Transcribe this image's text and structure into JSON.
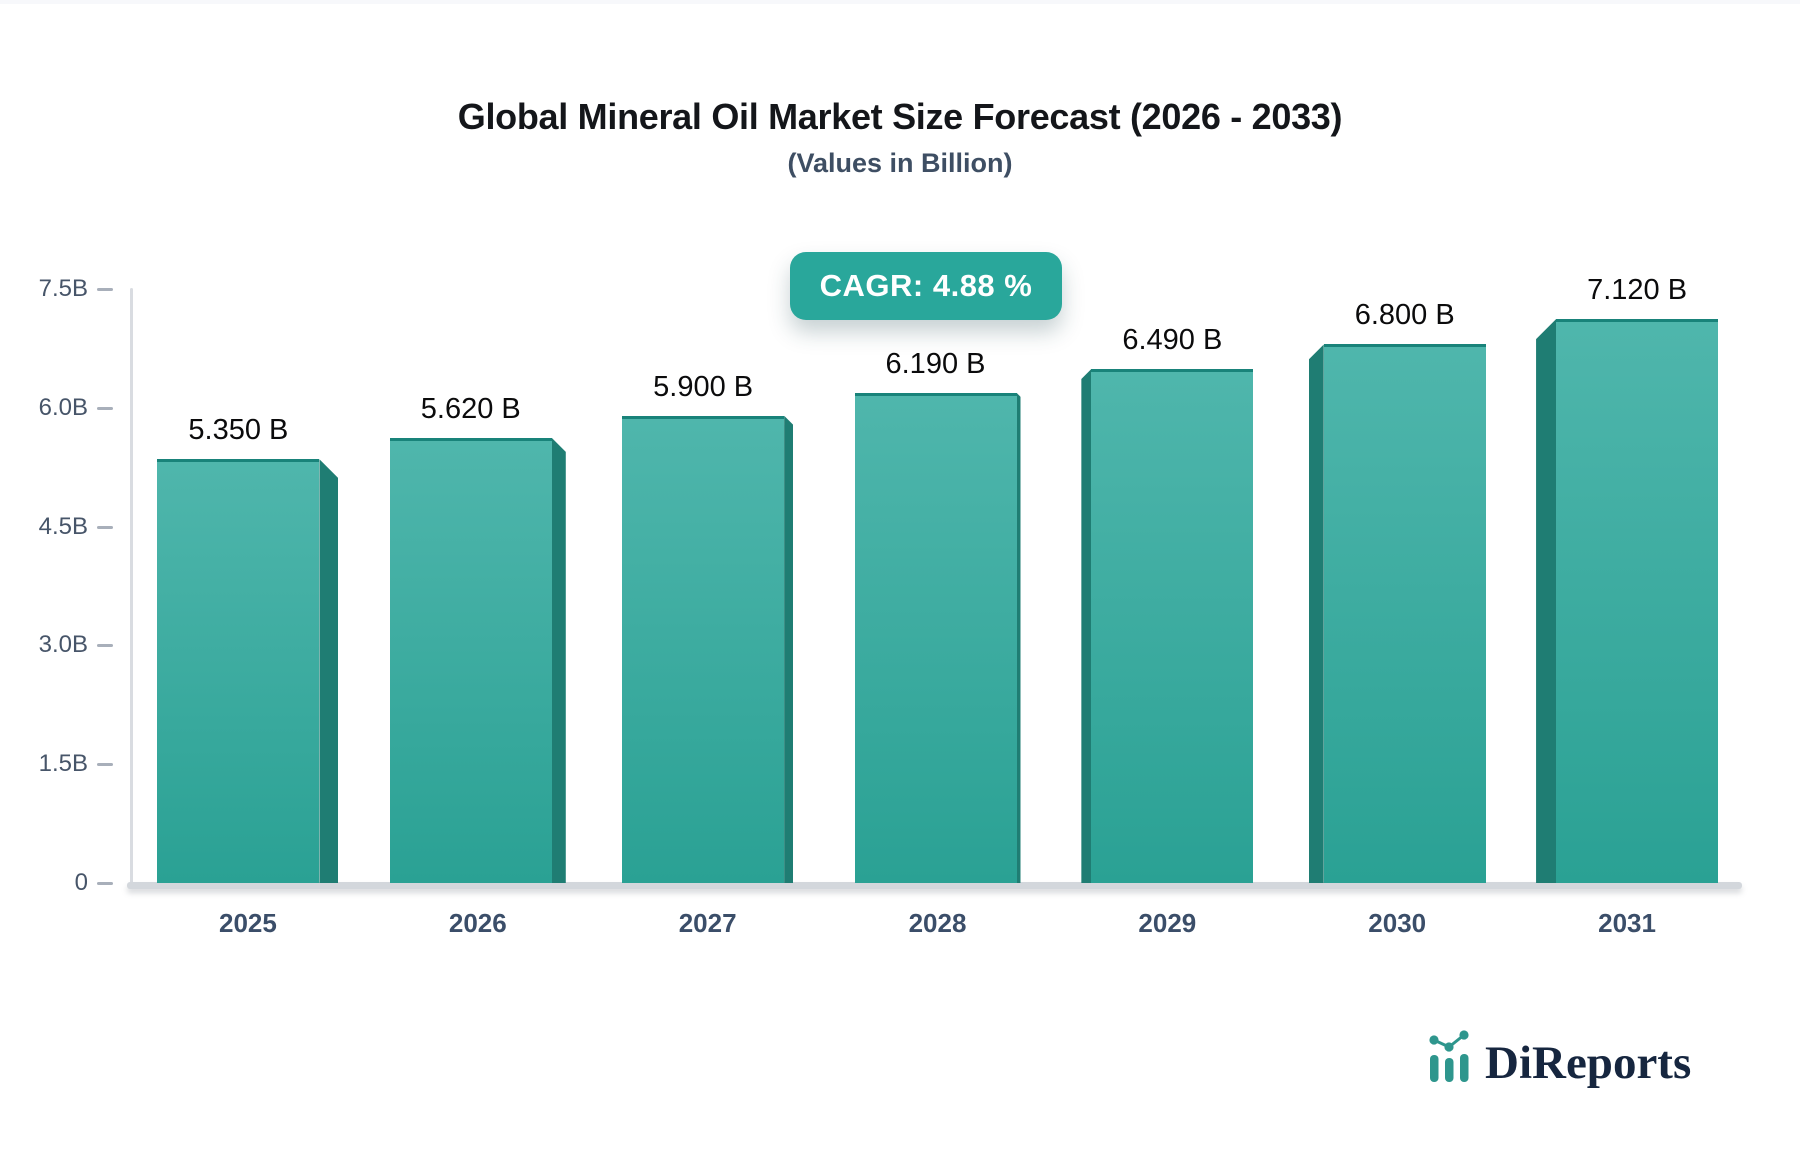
{
  "header": {
    "title": "Global Mineral Oil Market Size Forecast (2026 - 2033)",
    "subtitle": "(Values in Billion)"
  },
  "badge": {
    "label": "CAGR: 4.88 %"
  },
  "chart_data": {
    "type": "bar",
    "title": "Global Mineral Oil Market Size Forecast (2026 - 2033)",
    "subtitle": "(Values in Billion)",
    "categories": [
      "2025",
      "2026",
      "2027",
      "2028",
      "2029",
      "2030",
      "2031"
    ],
    "values": [
      5.35,
      5.62,
      5.9,
      6.19,
      6.49,
      6.8,
      7.12
    ],
    "bar_labels": [
      "5.350 B",
      "5.620 B",
      "5.900 B",
      "6.190 B",
      "6.490 B",
      "6.800 B",
      "7.120 B"
    ],
    "xlabel": "",
    "ylabel": "",
    "ylim": [
      0,
      7.5
    ],
    "ytick_values": [
      0,
      1.5,
      3,
      4.5,
      6,
      7.5
    ],
    "ytick_labels": [
      "0",
      "1.5B",
      "3.0B",
      "4.5B",
      "6.0B",
      "7.5B"
    ],
    "grid": false,
    "legend": "none",
    "style": "3d-perspective-bars"
  },
  "branding": {
    "name": "DiReports",
    "icon": "bar-line-chart-icon"
  },
  "colors": {
    "bar_face_top": "#4FB6AC",
    "bar_face_bottom": "#2AA194",
    "bar_side": "#1F7D73",
    "bar_top_border": "#19837A",
    "badge_bg": "#29A79B",
    "badge_text": "#FFFFFF",
    "axis_line": "#D9DCE1",
    "baseline": "#D3D7DC",
    "tick": "#A8AFBA",
    "ytick_text": "#475569",
    "xtick_text": "#3B4E69",
    "value_text": "#0B0B0C",
    "title_text": "#14161A",
    "subtitle_text": "#3E4E63",
    "logo_text": "#16263F",
    "logo_teal": "#2E968D"
  }
}
